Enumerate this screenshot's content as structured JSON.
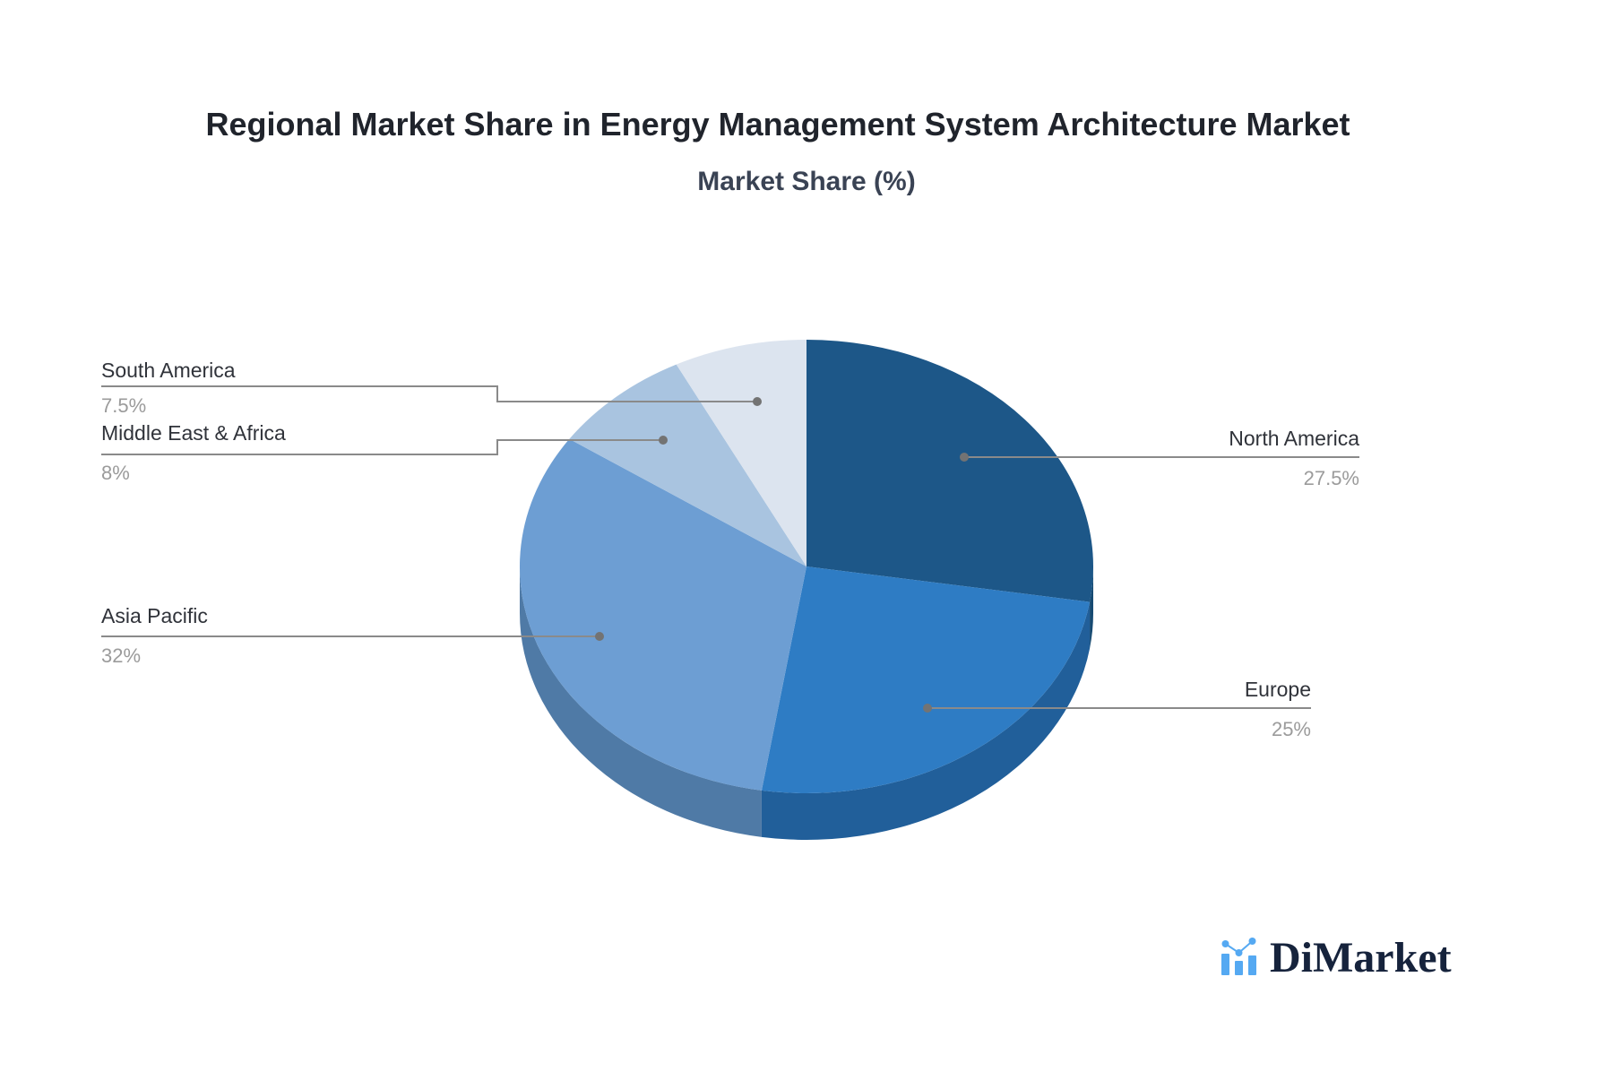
{
  "brand": {
    "name": "DiMarket"
  },
  "chart_data": {
    "type": "pie",
    "style": "3d",
    "title": "Regional Market Share in Energy Management System Architecture Market",
    "subtitle": "Market Share (%)",
    "unit": "%",
    "start_angle_deg": 0,
    "direction": "clockwise",
    "labels": [
      "North America",
      "Europe",
      "Asia Pacific",
      "Middle East & Africa",
      "South America"
    ],
    "values": [
      27.5,
      25,
      32,
      8,
      7.5
    ],
    "value_labels": [
      "27.5%",
      "25%",
      "32%",
      "8%",
      "7.5%"
    ],
    "slice_colors": [
      "#1d5788",
      "#2e7cc4",
      "#6d9ed3",
      "#a9c4e0",
      "#dce4ef"
    ],
    "slice_side_colors": [
      "#164a72",
      "#215f9a",
      "#4f7aa6",
      "#7f9cba",
      "#adbccf"
    ],
    "leader_line_color": "#8a8a8a",
    "leader_dot_color": "#737373",
    "label_text_color": "#30333a",
    "value_text_color": "#9b9b9b",
    "legend": "none",
    "background": "#ffffff"
  }
}
